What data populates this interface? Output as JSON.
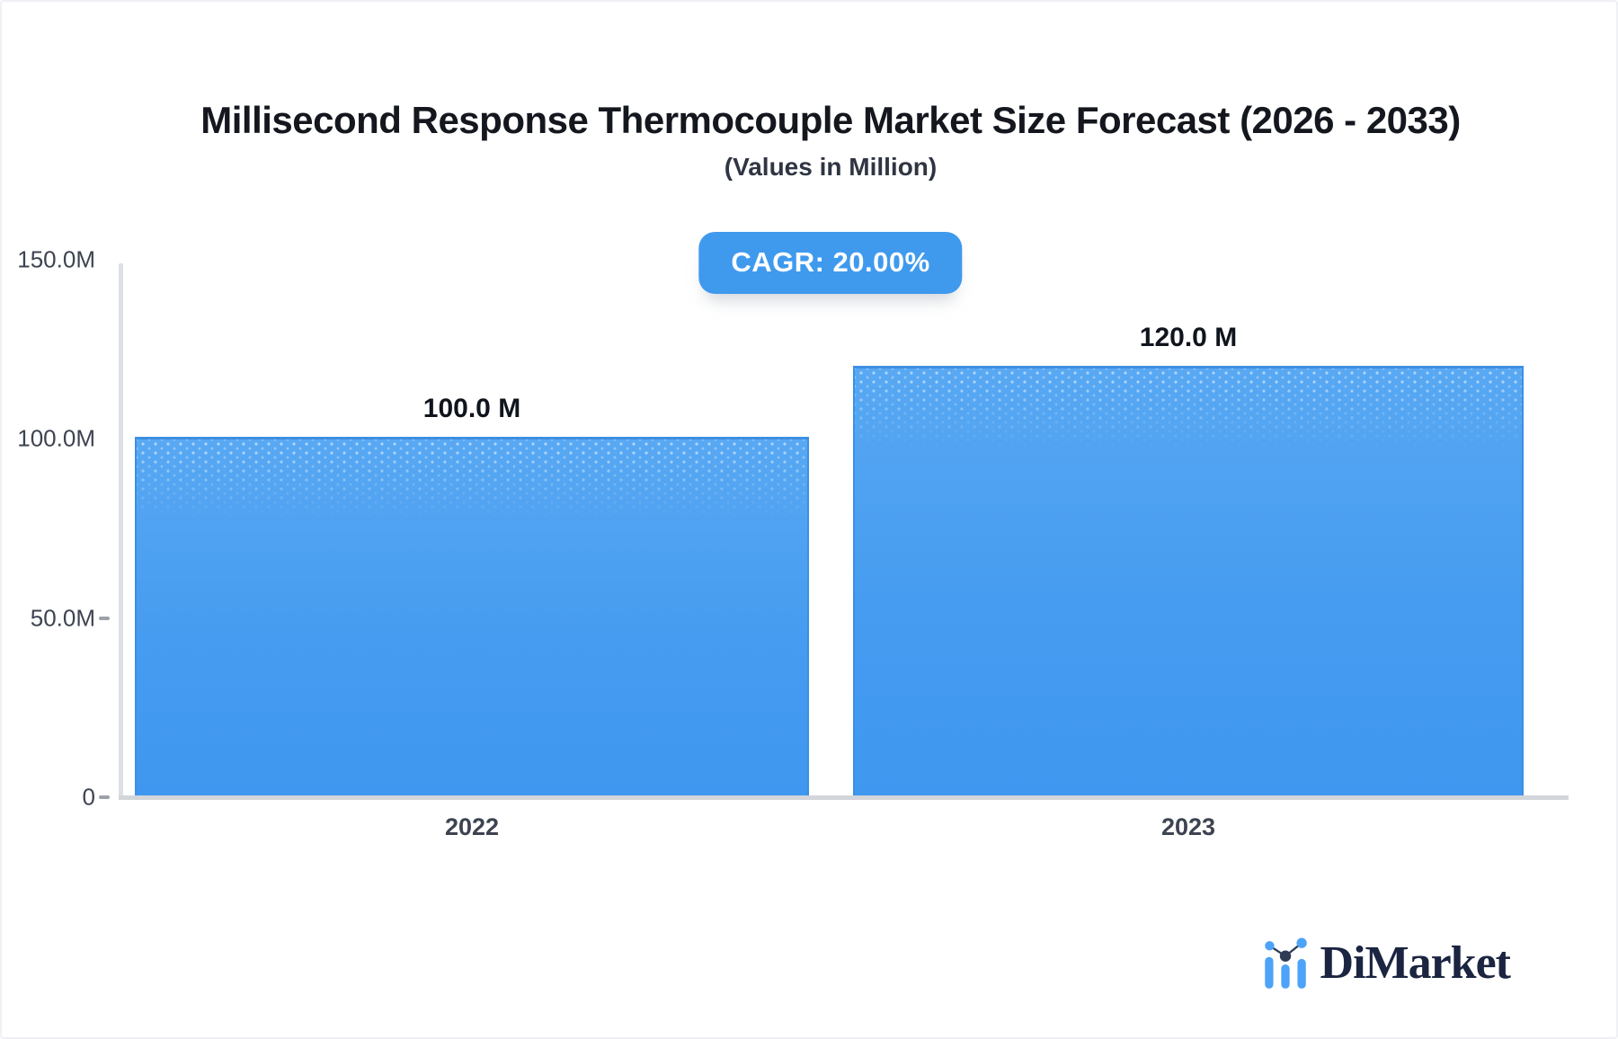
{
  "page": {
    "background": "#ffffff",
    "border_color": "#eef0f4"
  },
  "header": {
    "cagr_badge": {
      "label": "CAGR: 20.00%",
      "bg_color": "#3f9aee",
      "text_color": "#ffffff"
    }
  },
  "chart_data": {
    "type": "bar",
    "title": "Millisecond Response Thermocouple Market Size Forecast (2026 - 2033)",
    "subtitle": "(Values in Million)",
    "unit": "Million",
    "categories": [
      "2022",
      "2023"
    ],
    "values": [
      100,
      120
    ],
    "value_labels": [
      "100.0 M",
      "120.0 M"
    ],
    "cagr_percent": "20.00%",
    "ylim": [
      0,
      150
    ],
    "yticks": [
      {
        "value": 150,
        "label": "150.0M",
        "dash": false
      },
      {
        "value": 100,
        "label": "100.0M",
        "dash": false
      },
      {
        "value": 50,
        "label": "50.0M",
        "dash": true
      },
      {
        "value": 0,
        "label": "0",
        "dash": true
      }
    ],
    "grid": false,
    "legend": false,
    "bar_color": "#4aa0f1",
    "bar_border_color": "#3a90e6",
    "axis_line_color": "#d7dade",
    "label_color": "#3d4350"
  },
  "branding": {
    "logo_text": "DiMarket",
    "logo_text_color": "#1b2440",
    "logo_accent_color": "#4da3f7",
    "logo_icon": "mini-bar-line-chart-icon"
  }
}
